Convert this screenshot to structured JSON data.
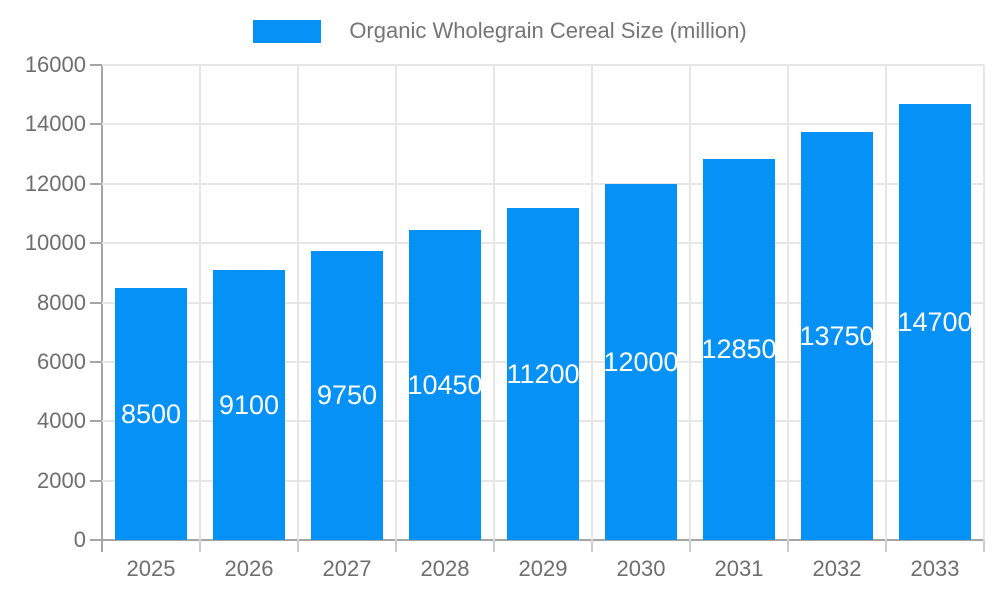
{
  "legend": {
    "label": "Organic Wholegrain Cereal Size (million)"
  },
  "colors": {
    "bar": "#0591f5",
    "bar_label": "#ffffff",
    "grid": "#e6e6e6",
    "axis_line": "#a6a6a6",
    "x_tick": "#cccccc",
    "axis_text": "#6e6e6e",
    "legend_text": "#757575",
    "background": "#ffffff"
  },
  "chart_data": {
    "type": "bar",
    "title": "Organic Wholegrain Cereal Size (million)",
    "categories": [
      "2025",
      "2026",
      "2027",
      "2028",
      "2029",
      "2030",
      "2031",
      "2032",
      "2033"
    ],
    "values": [
      8500,
      9100,
      9750,
      10450,
      11200,
      12000,
      12850,
      13750,
      14700
    ],
    "series": [
      {
        "name": "Organic Wholegrain Cereal Size (million)",
        "values": [
          8500,
          9100,
          9750,
          10450,
          11200,
          12000,
          12850,
          13750,
          14700
        ]
      }
    ],
    "xlabel": "",
    "ylabel": "",
    "ylim": [
      0,
      16000
    ],
    "yticks": [
      0,
      2000,
      4000,
      6000,
      8000,
      10000,
      12000,
      14000,
      16000
    ],
    "grid": true,
    "legend_position": "top-center",
    "bar_label_position": "inside-center"
  }
}
